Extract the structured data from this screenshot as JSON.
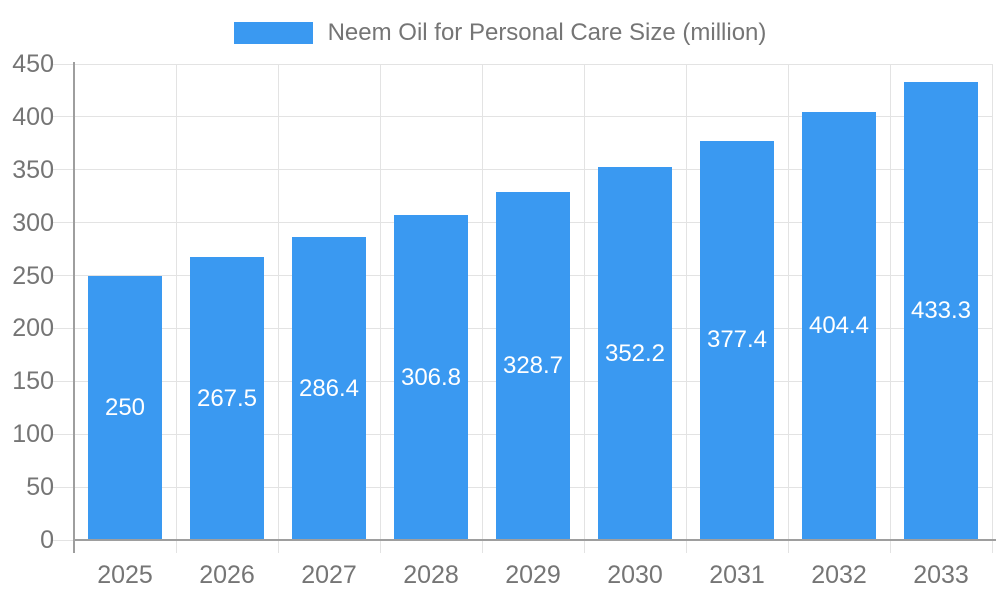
{
  "legend": {
    "label": "Neem Oil for Personal Care Size (million)"
  },
  "colors": {
    "bar": "#3a99f1",
    "grid": "#e3e3e3",
    "axis": "#9e9e9e",
    "text": "#757575",
    "value_label": "#ffffff",
    "background": "#ffffff"
  },
  "chart_data": {
    "type": "bar",
    "title": "",
    "series_name": "Neem Oil for Personal Care Size (million)",
    "categories": [
      "2025",
      "2026",
      "2027",
      "2028",
      "2029",
      "2030",
      "2031",
      "2032",
      "2033"
    ],
    "values": [
      250,
      267.5,
      286.4,
      306.8,
      328.7,
      352.2,
      377.4,
      404.4,
      433.3
    ],
    "value_labels": [
      "250",
      "267.5",
      "286.4",
      "306.8",
      "328.7",
      "352.2",
      "377.4",
      "404.4",
      "433.3"
    ],
    "xlabel": "",
    "ylabel": "",
    "ylim": [
      0,
      450
    ],
    "y_ticks": [
      0,
      50,
      100,
      150,
      200,
      250,
      300,
      350,
      400,
      450
    ],
    "grid": "both",
    "legend_position": "top",
    "value_label_position": "center-of-bar"
  }
}
